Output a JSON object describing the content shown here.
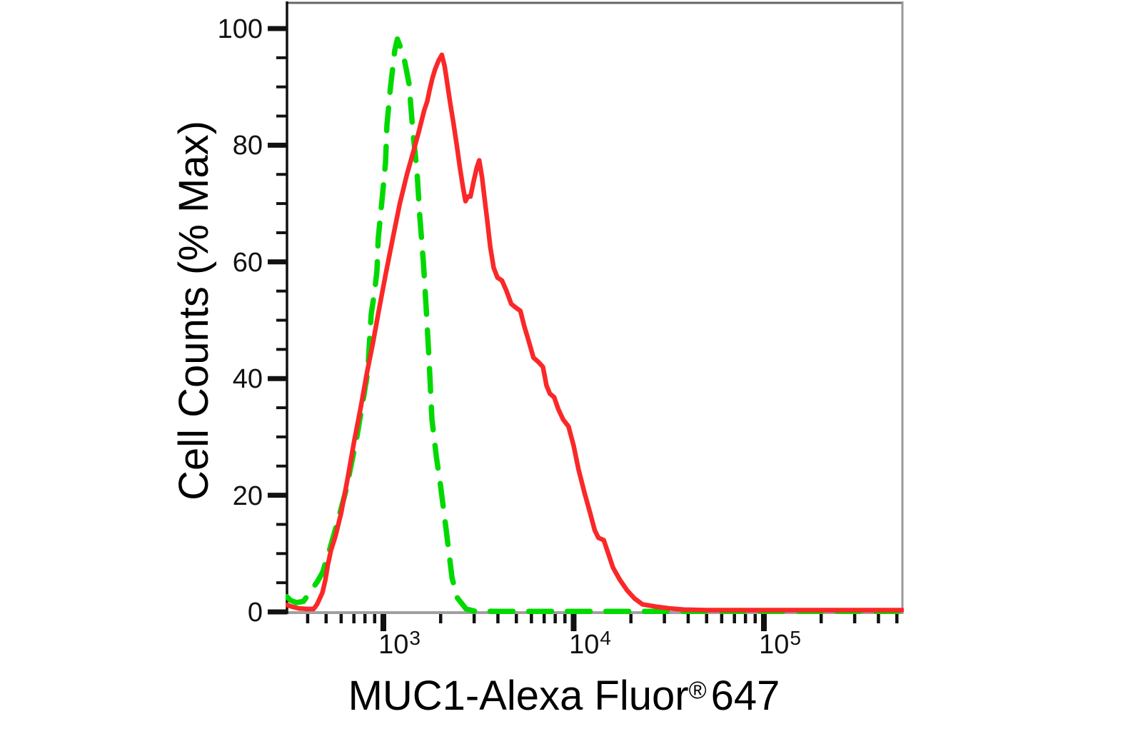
{
  "chart_data": {
    "type": "line",
    "title": "",
    "ylabel": "Cell Counts (% Max)",
    "xlabel_main": "MUC1-Alexa Fluor",
    "xlabel_registered": "®",
    "xlabel_suffix": "647",
    "x_scale": "log",
    "x_range": [
      311.5,
      535000
    ],
    "y_range": [
      0,
      104.5
    ],
    "grid": false,
    "legend": "none",
    "y_ticks": [
      "0",
      "20",
      "40",
      "60",
      "80",
      "100"
    ],
    "y_tick_values": [
      0,
      20,
      40,
      60,
      80,
      100
    ],
    "y_minor_ticks": [
      5,
      10,
      15,
      25,
      30,
      35,
      45,
      50,
      55,
      65,
      70,
      75,
      85,
      90,
      95
    ],
    "x_major_ticks": [
      1000,
      10000,
      100000
    ],
    "x_tick_labels": [
      {
        "base": "10",
        "exp": "3"
      },
      {
        "base": "10",
        "exp": "4"
      },
      {
        "base": "10",
        "exp": "5"
      }
    ],
    "x_minor_ticks": [
      400,
      500,
      600,
      700,
      800,
      900,
      2000,
      3000,
      4000,
      5000,
      6000,
      7000,
      8000,
      9000,
      20000,
      30000,
      40000,
      50000,
      60000,
      70000,
      80000,
      90000,
      200000,
      300000,
      400000,
      500000
    ],
    "colors": {
      "green_series": "#00d900",
      "red_series": "#fa2828",
      "axis_ticks": "#111111",
      "left_axis": "#111111",
      "baseline": "#a0a0a0",
      "frame_top": "#666666",
      "frame_right": "#999999"
    },
    "series": [
      {
        "name": "green dashed histogram (left, control)",
        "style": "dashed",
        "color_key": "green_series",
        "peak": {
          "x": 1185,
          "y": 98
        },
        "points": [
          [
            311,
            2.6
          ],
          [
            325,
            2.0
          ],
          [
            348,
            1.6
          ],
          [
            380,
            1.8
          ],
          [
            414,
            3.5
          ],
          [
            450,
            5.2
          ],
          [
            480,
            6.8
          ],
          [
            523,
            10.8
          ],
          [
            575,
            15.5
          ],
          [
            638,
            21
          ],
          [
            680,
            25.5
          ],
          [
            726,
            30
          ],
          [
            775,
            35.5
          ],
          [
            827,
            41
          ],
          [
            863,
            51
          ],
          [
            900,
            55
          ],
          [
            925,
            58.5
          ],
          [
            940,
            64
          ],
          [
            983,
            70.5
          ],
          [
            1026,
            77
          ],
          [
            1044,
            83.5
          ],
          [
            1090,
            90
          ],
          [
            1148,
            96.3
          ],
          [
            1185,
            98.2
          ],
          [
            1240,
            96.5
          ],
          [
            1296,
            94.3
          ],
          [
            1365,
            90.5
          ],
          [
            1425,
            82.8
          ],
          [
            1502,
            75.5
          ],
          [
            1554,
            67.8
          ],
          [
            1622,
            60
          ],
          [
            1678,
            52.2
          ],
          [
            1740,
            43
          ],
          [
            1800,
            33
          ],
          [
            1900,
            26.5
          ],
          [
            1997,
            21.7
          ],
          [
            2141,
            13.9
          ],
          [
            2297,
            5.8
          ],
          [
            2450,
            2.4
          ],
          [
            2723,
            0.5
          ],
          [
            3000,
            0.15
          ],
          [
            4000,
            0.1
          ],
          [
            6000,
            0.1
          ],
          [
            10000,
            0.1
          ],
          [
            20000,
            0.1
          ],
          [
            40000,
            0.1
          ],
          [
            80000,
            0.1
          ],
          [
            160000,
            0.1
          ],
          [
            320000,
            0.1
          ],
          [
            535000,
            0.1
          ]
        ]
      },
      {
        "name": "red solid histogram (right, MUC1 stained)",
        "style": "solid",
        "color_key": "red_series",
        "peak": {
          "x": 2030,
          "y": 95.5
        },
        "points": [
          [
            311,
            1.2
          ],
          [
            330,
            0.9
          ],
          [
            360,
            0.6
          ],
          [
            400,
            0.5
          ],
          [
            430,
            0.5
          ],
          [
            448,
            1.3
          ],
          [
            478,
            3.3
          ],
          [
            495,
            5.4
          ],
          [
            510,
            8
          ],
          [
            530,
            10.5
          ],
          [
            560,
            13
          ],
          [
            600,
            17
          ],
          [
            650,
            23
          ],
          [
            700,
            29
          ],
          [
            760,
            35
          ],
          [
            820,
            41
          ],
          [
            880,
            46
          ],
          [
            950,
            52
          ],
          [
            1030,
            58
          ],
          [
            1120,
            64
          ],
          [
            1220,
            70
          ],
          [
            1330,
            75
          ],
          [
            1440,
            79
          ],
          [
            1540,
            82.5
          ],
          [
            1640,
            86
          ],
          [
            1700,
            87.5
          ],
          [
            1750,
            89.5
          ],
          [
            1810,
            91.5
          ],
          [
            1870,
            93
          ],
          [
            1950,
            94.5
          ],
          [
            2030,
            95.5
          ],
          [
            2100,
            93.5
          ],
          [
            2180,
            90
          ],
          [
            2250,
            87
          ],
          [
            2330,
            84
          ],
          [
            2430,
            80
          ],
          [
            2530,
            76
          ],
          [
            2630,
            72.5
          ],
          [
            2700,
            70.4
          ],
          [
            2780,
            71.2
          ],
          [
            2870,
            71.2
          ],
          [
            2980,
            73.8
          ],
          [
            3100,
            76.2
          ],
          [
            3190,
            77.4
          ],
          [
            3300,
            74.5
          ],
          [
            3400,
            71
          ],
          [
            3520,
            67
          ],
          [
            3650,
            62.5
          ],
          [
            3800,
            59
          ],
          [
            3980,
            57.3
          ],
          [
            4200,
            56.8
          ],
          [
            4440,
            55
          ],
          [
            4700,
            52.8
          ],
          [
            4950,
            52.2
          ],
          [
            5250,
            51.6
          ],
          [
            5500,
            49
          ],
          [
            5800,
            46.5
          ],
          [
            6150,
            43.6
          ],
          [
            6550,
            42.8
          ],
          [
            6900,
            42
          ],
          [
            7200,
            38.8
          ],
          [
            7500,
            37.4
          ],
          [
            7900,
            36.8
          ],
          [
            8300,
            34.8
          ],
          [
            8800,
            33
          ],
          [
            9400,
            31.8
          ],
          [
            10000,
            28.5
          ],
          [
            10600,
            24.5
          ],
          [
            11400,
            20.4
          ],
          [
            12200,
            17
          ],
          [
            12900,
            14
          ],
          [
            13500,
            12.7
          ],
          [
            14400,
            12.3
          ],
          [
            15100,
            10.3
          ],
          [
            16100,
            7.6
          ],
          [
            17500,
            5.5
          ],
          [
            19100,
            3.7
          ],
          [
            20900,
            2.3
          ],
          [
            23000,
            1.3
          ],
          [
            27000,
            0.9
          ],
          [
            32000,
            0.6
          ],
          [
            38000,
            0.4
          ],
          [
            50000,
            0.3
          ],
          [
            80000,
            0.3
          ],
          [
            150000,
            0.3
          ],
          [
            300000,
            0.3
          ],
          [
            535000,
            0.3
          ]
        ]
      }
    ]
  }
}
